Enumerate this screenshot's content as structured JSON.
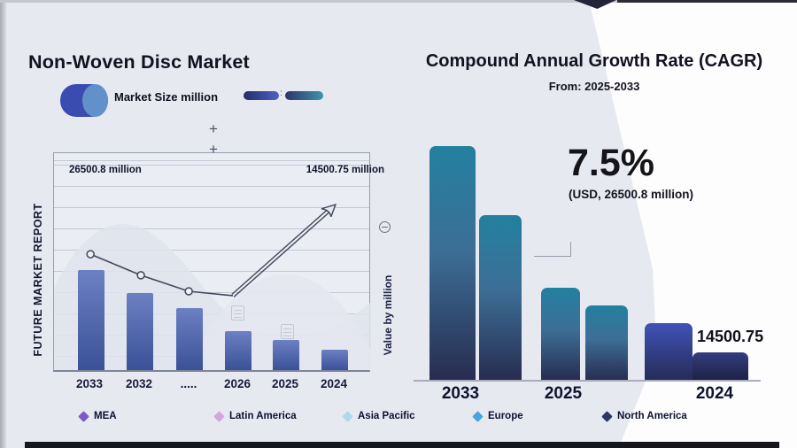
{
  "page": {
    "title": "Non-Woven Disc  Market",
    "market_size_label": "Market Size million",
    "pill_separator": ":",
    "plus_glyph": "+"
  },
  "left_chart": {
    "max_label": "26500.8 million",
    "end_label": "14500.75 million",
    "watermark": "FUTURE MARKET REPORT",
    "y_axis_label": "Value by million"
  },
  "right_panel": {
    "title": "Compound Annual Growth Rate (CAGR)",
    "subtitle": "From: 2025-2033",
    "cagr_value": "7.5%",
    "cagr_note": "(USD, 26500.8 million)",
    "value_callout": "14500.75"
  },
  "legend": {
    "items": [
      {
        "label": "MEA",
        "color": "#7a5bc4"
      },
      {
        "label": "Latin America",
        "color": "#d5a6da"
      },
      {
        "label": "Asia Pacific",
        "color": "#abdbe9"
      },
      {
        "label": "Europe",
        "color": "#4aa4dc"
      },
      {
        "label": "North America",
        "color": "#2b3769"
      }
    ]
  },
  "colors": {
    "background": "#e7e9f1",
    "left_bar_top": "#6c81c3",
    "left_bar_bottom": "#3b5197",
    "teal_bar_top": "#23809f",
    "teal_bar_mid": "#3d6e96",
    "teal_bar_bottom": "#272c4f",
    "royal_bar_top": "#4053b8",
    "royal_bar_bottom": "#252b56",
    "navy_bar_top": "#333d7e",
    "navy_bar_bottom": "#1d2142",
    "line_stroke": "#43465a"
  },
  "chart_data": [
    {
      "id": "market-size-trend",
      "type": "bar",
      "title": "Non-Woven Disc Market - Market Size million",
      "ylabel": "Value by million",
      "unit": "USD million",
      "categories": [
        "2033",
        "2032",
        ".....",
        "2026",
        "2025",
        "2024"
      ],
      "values_normalized": [
        0.454,
        0.35,
        0.281,
        0.177,
        0.137,
        0.093
      ],
      "labeled_values": {
        "2033": 26500.8,
        "2024": 14500.75
      },
      "annotations": [
        "26500.8 million",
        "14500.75 million"
      ],
      "grid": true,
      "line_overlay": {
        "points": [
          [
            0.115,
            0.46
          ],
          [
            0.274,
            0.556
          ],
          [
            0.425,
            0.629
          ],
          [
            0.564,
            0.649
          ]
        ],
        "arrow_to": [
          0.888,
          0.234
        ]
      }
    },
    {
      "id": "cagr-comparison",
      "type": "bar",
      "title": "Compound Annual Growth Rate (CAGR)",
      "subtitle": "From: 2025-2033",
      "cagr_percent": 7.5,
      "period": "2025-2033",
      "unit": "USD million",
      "categories": [
        "2033",
        "2025",
        "2024"
      ],
      "series": [
        {
          "name": "series-a",
          "values_normalized": [
            1.0,
            0.396,
            0.245
          ]
        },
        {
          "name": "series-b",
          "values_normalized": [
            0.705,
            0.321,
            0.121
          ]
        }
      ],
      "labeled_values": {
        "2033": 26500.8,
        "2024": 14500.75
      },
      "legend_position": "bottom",
      "grid": false
    }
  ]
}
